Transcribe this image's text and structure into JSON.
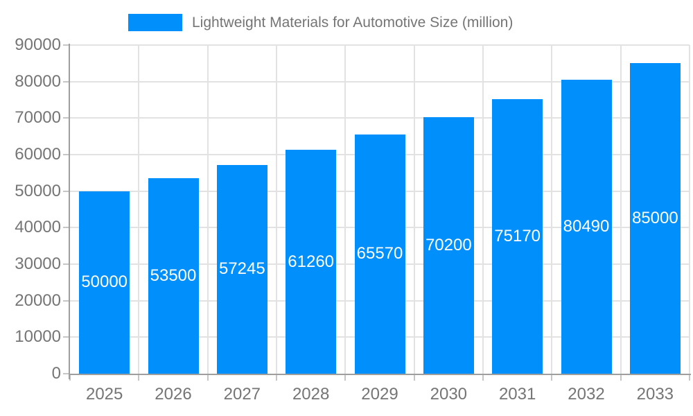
{
  "chart_data": {
    "type": "bar",
    "title": "Lightweight Materials for Automotive Size (million)",
    "categories": [
      "2025",
      "2026",
      "2027",
      "2028",
      "2029",
      "2030",
      "2031",
      "2032",
      "2033"
    ],
    "values": [
      50000,
      53500,
      57245,
      61260,
      65570,
      70200,
      75170,
      80490,
      85000
    ],
    "bar_labels": [
      "50000",
      "53500",
      "57245",
      "61260",
      "65570",
      "70200",
      "75170",
      "80490",
      "85000"
    ],
    "y_ticks": [
      "0",
      "10000",
      "20000",
      "30000",
      "40000",
      "50000",
      "60000",
      "70000",
      "80000",
      "90000"
    ],
    "xlabel": "",
    "ylabel": "",
    "ylim": [
      0,
      90000
    ],
    "ytick_step": 10000,
    "grid": "on",
    "legend_position": "top",
    "colors": {
      "bar": "#008FFB",
      "grid": "#e2e2e2",
      "axis": "#9e9e9e",
      "tick": "#c6c6c6",
      "text": "#757575",
      "bar_label_text": "#ffffff",
      "background": "#ffffff"
    }
  }
}
